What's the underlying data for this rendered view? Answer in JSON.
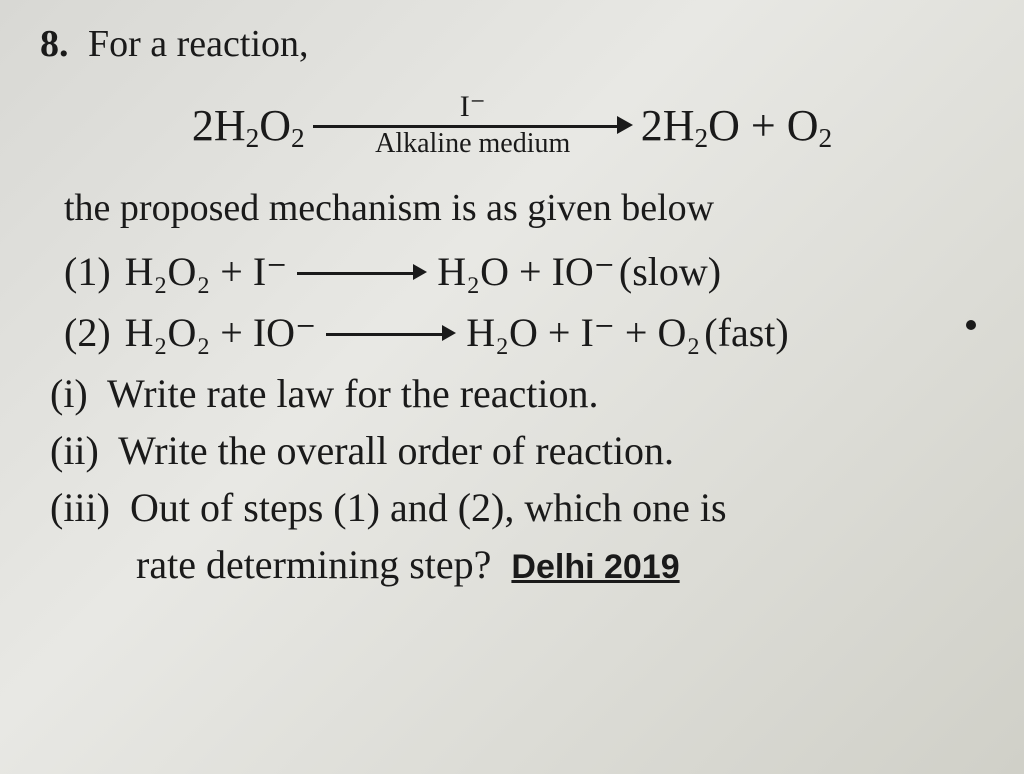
{
  "question": {
    "number": "8.",
    "prompt": "For a reaction,"
  },
  "overall_reaction": {
    "lhs": "2H",
    "lhs_sub1": "2",
    "lhs_mid": "O",
    "lhs_sub2": "2",
    "arrow_top": "I⁻",
    "arrow_bottom": "Alkaline medium",
    "rhs_a": "2H",
    "rhs_a_sub": "2",
    "rhs_a_tail": "O",
    "plus": " + ",
    "rhs_b": "O",
    "rhs_b_sub": "2"
  },
  "lead": "the proposed mechanism is as given below",
  "mechanism": [
    {
      "label": "(1)",
      "lhs": "H₂O₂ + I⁻",
      "rhs": "H₂O + IO⁻",
      "note": "(slow)"
    },
    {
      "label": "(2)",
      "lhs": "H₂O₂ + IO⁻",
      "rhs": "H₂O + I⁻ + O₂",
      "note": "(fast)"
    }
  ],
  "subquestions": {
    "i": {
      "roman": "(i)",
      "text": "Write rate law for the reaction."
    },
    "ii": {
      "roman": "(ii)",
      "text": "Write the overall order of reaction."
    },
    "iii": {
      "roman": "(iii)",
      "line1": "Out of steps (1) and (2), which one is",
      "line2": "rate determining step?"
    }
  },
  "source_tag": "Delhi 2019",
  "style": {
    "bg_colors": [
      "#d8d8d4",
      "#e8e8e4",
      "#d0d0c8"
    ],
    "text_color": "#1a1a1a",
    "body_font": "Times New Roman",
    "tag_font": "Arial",
    "q_fontsize": 38,
    "eq_fontsize": 44,
    "mech_fontsize": 40,
    "subq_fontsize": 40,
    "tag_fontsize": 34,
    "arrow_width_main": 320,
    "arrow_width_inline": 130,
    "arrow_thickness": 3
  }
}
